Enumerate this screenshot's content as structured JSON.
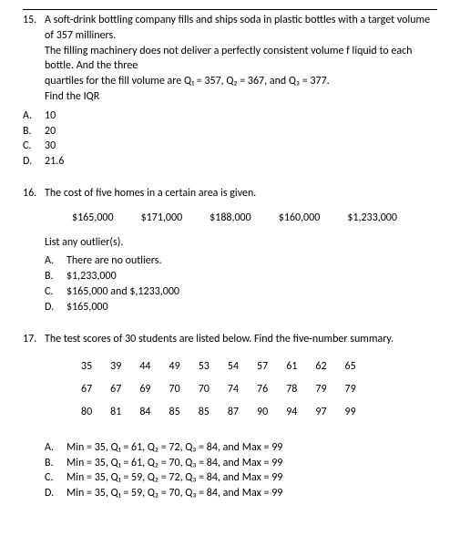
{
  "q15": {
    "number": "15.",
    "text1": "A soft-drink bottling company fills and ships soda in plastic bottles with a target volume of 357 milliners.",
    "text2": "The filling machinery does not deliver a perfectly consistent volume f liquid to each bottle. And the three",
    "text3": "quartiles for the fill volume are Q₁ = 357, Q₂ = 367, and Q₃ = 377.",
    "text4": "Find the IQR",
    "options": [
      {
        "label": "A.",
        "text": "10"
      },
      {
        "label": "B.",
        "text": "20"
      },
      {
        "label": "C.",
        "text": "30"
      },
      {
        "label": "D.",
        "text": "21.6"
      }
    ]
  },
  "q16": {
    "number": "16.",
    "text": "The cost of five homes in a certain area is given.",
    "prices": [
      "$165,000",
      "$171,000",
      "$188,000",
      "$160,000",
      "$1,233,000"
    ],
    "subinstr": "List any outlier(s).",
    "options": [
      {
        "label": "A.",
        "text": "There are no outliers."
      },
      {
        "label": "B.",
        "text": "$1,233,000"
      },
      {
        "label": "C.",
        "text": "$165,000 and $,1233,000"
      },
      {
        "label": "D.",
        "text": "$165,000"
      }
    ]
  },
  "q17": {
    "number": "17.",
    "text": "The test scores of 30 students are listed below. Find the five-number summary.",
    "scores": [
      [
        "35",
        "39",
        "44",
        "49",
        "53",
        "54",
        "57",
        "61",
        "62",
        "65"
      ],
      [
        "67",
        "67",
        "69",
        "70",
        "70",
        "74",
        "76",
        "78",
        "79",
        "79"
      ],
      [
        "80",
        "81",
        "84",
        "85",
        "85",
        "87",
        "90",
        "94",
        "97",
        "99"
      ]
    ],
    "options": [
      {
        "label": "A.",
        "text": "Min = 35, Q₁ = 61, Q₂ = 72, Q₃ = 84, and Max = 99"
      },
      {
        "label": "B.",
        "text": "Min = 35, Q₁ = 61, Q₂ = 70, Q₃ = 84, and Max = 99"
      },
      {
        "label": "C.",
        "text": "Min = 35, Q₁ = 59, Q₂ = 72, Q₃ = 84, and Max = 99"
      },
      {
        "label": "D.",
        "text": "Min = 35, Q₁ = 59, Q₂ = 70, Q₃ = 84, and Max = 99"
      }
    ]
  }
}
